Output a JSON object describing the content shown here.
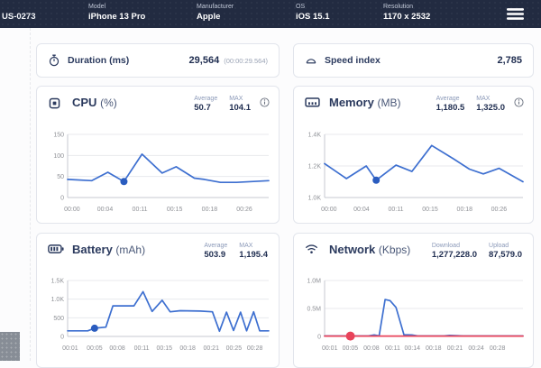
{
  "header": {
    "device_id": "US-0273",
    "fields": [
      {
        "label": "Model",
        "value": "iPhone 13 Pro"
      },
      {
        "label": "Manufacturer",
        "value": "Apple"
      },
      {
        "label": "OS",
        "value": "iOS 15.1"
      },
      {
        "label": "Resolution",
        "value": "1170 x 2532"
      }
    ],
    "menu_icon": "hamburger-icon"
  },
  "stat_cards": [
    {
      "icon": "stopwatch-icon",
      "label": "Duration (ms)",
      "value": "29,564",
      "sub": "(00:00:29.564)"
    },
    {
      "icon": "gauge-icon",
      "label": "Speed index",
      "value": "2,785",
      "sub": ""
    }
  ],
  "colors": {
    "header_bg": "#222b41",
    "title_navy": "#2b3a5e",
    "accent_blue": "#3d6fd0",
    "marker_blue": "#2a5cbf",
    "accent_red": "#e8435a",
    "card_border": "#e2e5ec"
  },
  "chart_data": [
    {
      "id": "cpu",
      "type": "line",
      "title": "CPU",
      "unit": "(%)",
      "icon": "cpu-icon",
      "info_icon": true,
      "stats": [
        {
          "label": "Average",
          "value": "50.7"
        },
        {
          "label": "MAX",
          "value": "104.1"
        }
      ],
      "ylim": [
        0,
        150
      ],
      "yticks": [
        {
          "v": 0,
          "label": "0"
        },
        {
          "v": 50,
          "label": "50"
        },
        {
          "v": 100,
          "label": "100"
        },
        {
          "v": 150,
          "label": "150"
        }
      ],
      "xticks": [
        {
          "f": 0.022,
          "label": "00:00"
        },
        {
          "f": 0.186,
          "label": "00:04"
        },
        {
          "f": 0.359,
          "label": "00:11"
        },
        {
          "f": 0.532,
          "label": "00:15"
        },
        {
          "f": 0.706,
          "label": "00:18"
        },
        {
          "f": 0.879,
          "label": "00:26"
        }
      ],
      "series": [
        {
          "name": "CPU",
          "color": "#3d6fd0",
          "marker": {
            "index": 3,
            "r": 4,
            "color": "#2a5cbf"
          },
          "points": [
            [
              0,
              43
            ],
            [
              0.12,
              40
            ],
            [
              0.2,
              60
            ],
            [
              0.28,
              38
            ],
            [
              0.37,
              103
            ],
            [
              0.47,
              58
            ],
            [
              0.54,
              73
            ],
            [
              0.63,
              46
            ],
            [
              0.68,
              43
            ],
            [
              0.76,
              36
            ],
            [
              0.84,
              36
            ],
            [
              1,
              40
            ]
          ]
        }
      ]
    },
    {
      "id": "memory",
      "type": "line",
      "title": "Memory",
      "unit": "(MB)",
      "icon": "memory-icon",
      "info_icon": true,
      "stats": [
        {
          "label": "Average",
          "value": "1,180.5"
        },
        {
          "label": "MAX",
          "value": "1,325.0"
        }
      ],
      "ylim": [
        1000,
        1400
      ],
      "yticks": [
        {
          "v": 1000,
          "label": "1.0K"
        },
        {
          "v": 1200,
          "label": "1.2K"
        },
        {
          "v": 1400,
          "label": "1.4K"
        }
      ],
      "xticks": [
        {
          "f": 0.022,
          "label": "00:00"
        },
        {
          "f": 0.186,
          "label": "00:04"
        },
        {
          "f": 0.359,
          "label": "00:11"
        },
        {
          "f": 0.532,
          "label": "00:15"
        },
        {
          "f": 0.706,
          "label": "00:18"
        },
        {
          "f": 0.879,
          "label": "00:26"
        }
      ],
      "series": [
        {
          "name": "Memory",
          "color": "#3d6fd0",
          "marker": {
            "index": 3,
            "r": 4,
            "color": "#2a5cbf"
          },
          "points": [
            [
              0,
              1215
            ],
            [
              0.11,
              1120
            ],
            [
              0.21,
              1200
            ],
            [
              0.26,
              1110
            ],
            [
              0.36,
              1205
            ],
            [
              0.44,
              1165
            ],
            [
              0.54,
              1330
            ],
            [
              0.65,
              1245
            ],
            [
              0.73,
              1180
            ],
            [
              0.8,
              1150
            ],
            [
              0.88,
              1185
            ],
            [
              1,
              1100
            ]
          ]
        }
      ]
    },
    {
      "id": "battery",
      "type": "line",
      "title": "Battery",
      "unit": "(mAh)",
      "icon": "battery-icon",
      "info_icon": false,
      "stats": [
        {
          "label": "Average",
          "value": "503.9"
        },
        {
          "label": "MAX",
          "value": "1,195.4"
        }
      ],
      "ylim": [
        0,
        1500
      ],
      "yticks": [
        {
          "v": 0,
          "label": "0"
        },
        {
          "v": 500,
          "label": "500"
        },
        {
          "v": 1000,
          "label": "1.0K"
        },
        {
          "v": 1500,
          "label": "1.5K"
        }
      ],
      "xticks": [
        {
          "f": 0.013,
          "label": "00:01"
        },
        {
          "f": 0.134,
          "label": "00:05"
        },
        {
          "f": 0.247,
          "label": "00:08"
        },
        {
          "f": 0.368,
          "label": "00:11"
        },
        {
          "f": 0.481,
          "label": "00:15"
        },
        {
          "f": 0.597,
          "label": "00:18"
        },
        {
          "f": 0.714,
          "label": "00:21"
        },
        {
          "f": 0.827,
          "label": "00:25"
        },
        {
          "f": 0.931,
          "label": "00:28"
        }
      ],
      "series": [
        {
          "name": "Battery",
          "color": "#3d6fd0",
          "marker": {
            "index": 2,
            "r": 4,
            "color": "#2a5cbf"
          },
          "points": [
            [
              0,
              150
            ],
            [
              0.1,
              150
            ],
            [
              0.134,
              220
            ],
            [
              0.19,
              250
            ],
            [
              0.225,
              820
            ],
            [
              0.33,
              820
            ],
            [
              0.375,
              1200
            ],
            [
              0.42,
              670
            ],
            [
              0.47,
              970
            ],
            [
              0.51,
              660
            ],
            [
              0.56,
              690
            ],
            [
              0.66,
              680
            ],
            [
              0.72,
              660
            ],
            [
              0.755,
              140
            ],
            [
              0.79,
              650
            ],
            [
              0.825,
              160
            ],
            [
              0.86,
              650
            ],
            [
              0.89,
              150
            ],
            [
              0.925,
              660
            ],
            [
              0.955,
              150
            ],
            [
              1,
              150
            ]
          ]
        }
      ]
    },
    {
      "id": "network",
      "type": "line",
      "title": "Network",
      "unit": "(Kbps)",
      "icon": "wifi-icon",
      "info_icon": false,
      "stats": [
        {
          "label": "Download",
          "value": "1,277,228.0"
        },
        {
          "label": "Upload",
          "value": "87,579.0"
        }
      ],
      "ylim": [
        0,
        1000000
      ],
      "yticks": [
        {
          "v": 0,
          "label": "0"
        },
        {
          "v": 500000,
          "label": "0.5M"
        },
        {
          "v": 1000000,
          "label": "1.0M"
        }
      ],
      "xticks": [
        {
          "f": 0.026,
          "label": "00:01"
        },
        {
          "f": 0.129,
          "label": "00:05"
        },
        {
          "f": 0.236,
          "label": "00:08"
        },
        {
          "f": 0.343,
          "label": "00:11"
        },
        {
          "f": 0.442,
          "label": "00:14"
        },
        {
          "f": 0.549,
          "label": "00:18"
        },
        {
          "f": 0.657,
          "label": "00:21"
        },
        {
          "f": 0.764,
          "label": "00:24"
        },
        {
          "f": 0.871,
          "label": "00:28"
        }
      ],
      "series": [
        {
          "name": "Download",
          "color": "#3d6fd0",
          "points": [
            [
              0,
              8000
            ],
            [
              0.22,
              8000
            ],
            [
              0.25,
              25000
            ],
            [
              0.275,
              12000
            ],
            [
              0.305,
              660000
            ],
            [
              0.33,
              640000
            ],
            [
              0.36,
              520000
            ],
            [
              0.4,
              30000
            ],
            [
              0.44,
              28000
            ],
            [
              0.47,
              8000
            ],
            [
              0.6,
              8000
            ],
            [
              0.63,
              20000
            ],
            [
              0.66,
              14000
            ],
            [
              0.7,
              8000
            ],
            [
              1,
              8000
            ]
          ]
        },
        {
          "name": "Upload",
          "color": "#e8435a",
          "marker": {
            "index": 1,
            "r": 5,
            "color": "#e8435a"
          },
          "points": [
            [
              0,
              6000
            ],
            [
              0.13,
              6000
            ],
            [
              1,
              6000
            ]
          ]
        }
      ]
    }
  ]
}
